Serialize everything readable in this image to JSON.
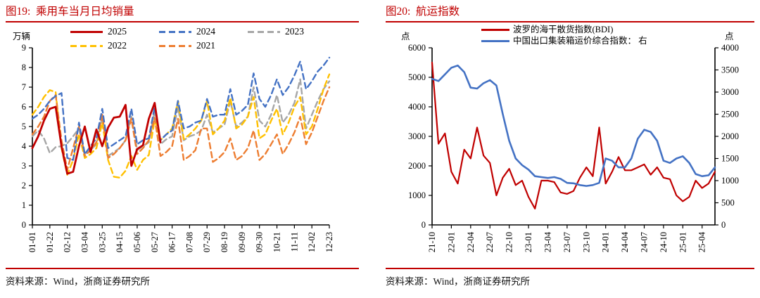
{
  "page": {
    "background": "#FFFFFF",
    "accent_color": "#C00000"
  },
  "figures": [
    {
      "title": "图19:  乘用车当月日均销量",
      "source": "资料来源：Wind，浙商证券研究所"
    },
    {
      "title": "图20:  航运指数",
      "source": "资料来源：Wind，浙商证券研究所"
    }
  ],
  "chart_data": [
    {
      "type": "line",
      "title": "乘用车当月日均销量",
      "ylabel": "万辆",
      "y_unit": "万辆",
      "grid": false,
      "legend_position": "top",
      "y_axis": {
        "min": 0,
        "max": 9,
        "step": 1
      },
      "x_count": 52,
      "x_tick_every": 3,
      "x_tick_labels": [
        "01-01",
        "01-22",
        "02-12",
        "03-04",
        "03-25",
        "04-15",
        "05-06",
        "05-27",
        "06-17",
        "07-08",
        "07-29",
        "08-19",
        "09-09",
        "09-30",
        "10-21",
        "11-11",
        "12-02",
        "12-23"
      ],
      "series": [
        {
          "name": "2025",
          "color": "#C00000",
          "style": "solid",
          "width": 2.8,
          "values": [
            3.9,
            4.5,
            5.3,
            5.9,
            6.0,
            4.0,
            2.6,
            2.7,
            4.0,
            5.0,
            3.7,
            4.85,
            4.0,
            4.95,
            5.45,
            5.5,
            6.1,
            3.0,
            3.85,
            4.05,
            5.4,
            6.2,
            4.2
          ]
        },
        {
          "name": "2024",
          "color": "#4472C4",
          "style": "dashed",
          "width": 2.4,
          "values": [
            5.4,
            5.6,
            5.9,
            6.3,
            6.55,
            6.7,
            3.4,
            3.3,
            5.2,
            3.6,
            4.0,
            4.4,
            5.9,
            3.9,
            4.1,
            4.3,
            4.5,
            5.9,
            4.1,
            4.3,
            4.4,
            6.0,
            4.3,
            4.6,
            4.8,
            6.3,
            4.9,
            5.0,
            5.2,
            5.3,
            6.4,
            5.5,
            5.6,
            5.6,
            6.9,
            5.6,
            5.8,
            6.1,
            7.7,
            6.4,
            6.0,
            6.6,
            7.4,
            6.6,
            7.0,
            7.6,
            8.3,
            6.9,
            7.3,
            7.8,
            8.1,
            8.5
          ]
        },
        {
          "name": "2023",
          "color": "#A6A6A6",
          "style": "dashed",
          "width": 2.4,
          "values": [
            4.5,
            4.8,
            4.4,
            3.65,
            3.95,
            4.0,
            4.15,
            4.5,
            4.9,
            3.6,
            3.8,
            4.1,
            5.5,
            3.5,
            3.7,
            3.9,
            4.3,
            5.5,
            3.8,
            4.0,
            4.2,
            5.8,
            4.1,
            4.35,
            4.5,
            6.0,
            4.3,
            4.5,
            4.6,
            4.8,
            5.6,
            4.7,
            4.9,
            5.1,
            6.3,
            5.0,
            5.2,
            5.5,
            7.0,
            5.3,
            5.0,
            5.6,
            6.6,
            5.2,
            5.6,
            6.2,
            7.4,
            4.9,
            5.6,
            6.3,
            6.9,
            7.3
          ]
        },
        {
          "name": "2022",
          "color": "#FFC000",
          "style": "dashed",
          "width": 2.4,
          "values": [
            5.6,
            6.0,
            6.5,
            6.85,
            6.75,
            3.9,
            2.55,
            3.3,
            4.6,
            3.4,
            3.6,
            3.9,
            5.2,
            3.3,
            2.45,
            2.4,
            2.75,
            3.5,
            2.8,
            3.3,
            3.55,
            5.35,
            4.3,
            4.6,
            4.9,
            6.3,
            4.35,
            4.6,
            4.9,
            5.3,
            6.3,
            4.6,
            4.9,
            5.3,
            6.45,
            4.9,
            5.1,
            5.5,
            6.5,
            4.4,
            4.6,
            5.3,
            5.9,
            4.6,
            5.2,
            6.0,
            6.5,
            4.6,
            5.0,
            5.9,
            6.9,
            7.65
          ]
        },
        {
          "name": "2021",
          "color": "#ED7D31",
          "style": "dashed",
          "width": 2.4,
          "values": [
            4.6,
            5.0,
            5.5,
            6.3,
            6.6,
            4.3,
            2.8,
            3.9,
            5.0,
            3.5,
            3.8,
            4.2,
            5.6,
            3.4,
            3.6,
            3.9,
            4.3,
            5.4,
            3.6,
            3.9,
            4.3,
            5.45,
            3.5,
            3.7,
            4.0,
            5.4,
            3.3,
            3.5,
            3.8,
            4.9,
            4.9,
            3.2,
            3.4,
            3.7,
            4.4,
            3.3,
            3.5,
            3.9,
            4.8,
            3.3,
            3.6,
            4.1,
            4.6,
            3.6,
            4.1,
            4.7,
            5.5,
            4.1,
            4.7,
            5.5,
            6.3,
            7.0
          ]
        }
      ]
    },
    {
      "type": "line",
      "title": "航运指数",
      "ylabel": "点",
      "y_unit_left": "点",
      "y_unit_right": "点",
      "grid": false,
      "legend_position": "top",
      "y_left": {
        "min": 0,
        "max": 6000,
        "step": 1000
      },
      "y_right": {
        "min": 0,
        "max": 4000,
        "step": 500
      },
      "x_count": 45,
      "x_tick_every": 3,
      "x_tick_labels": [
        "21-10",
        "22-01",
        "22-04",
        "22-07",
        "22-10",
        "23-01",
        "23-04",
        "23-07",
        "23-10",
        "24-01",
        "24-04",
        "24-07",
        "24-10",
        "25-01",
        "25-04"
      ],
      "series": [
        {
          "name": "波罗的海干散货指数(BDI)",
          "color": "#C00000",
          "style": "solid",
          "width": 2.2,
          "axis": "left",
          "values": [
            5500,
            2750,
            3100,
            1800,
            1400,
            2550,
            2250,
            3300,
            2350,
            2100,
            1000,
            1600,
            1900,
            1350,
            1500,
            950,
            550,
            1500,
            1500,
            1450,
            1100,
            1050,
            1150,
            1600,
            1950,
            1650,
            3300,
            1400,
            1800,
            2300,
            1850,
            1850,
            1950,
            2050,
            1700,
            1950,
            1600,
            1550,
            1000,
            800,
            950,
            1500,
            1250,
            1400,
            1800
          ]
        },
        {
          "name": "中国出口集装箱运价综合指数： 右",
          "color": "#4472C4",
          "style": "solid",
          "width": 2.6,
          "axis": "right",
          "values": [
            3300,
            3250,
            3400,
            3550,
            3600,
            3450,
            3100,
            3080,
            3200,
            3270,
            3150,
            2500,
            1900,
            1500,
            1350,
            1250,
            1100,
            1080,
            1060,
            1080,
            1040,
            950,
            940,
            900,
            880,
            900,
            950,
            1500,
            1450,
            1300,
            1300,
            1500,
            1950,
            2150,
            2100,
            1900,
            1450,
            1400,
            1500,
            1550,
            1400,
            1150,
            1100,
            1120,
            1300
          ]
        }
      ]
    }
  ]
}
